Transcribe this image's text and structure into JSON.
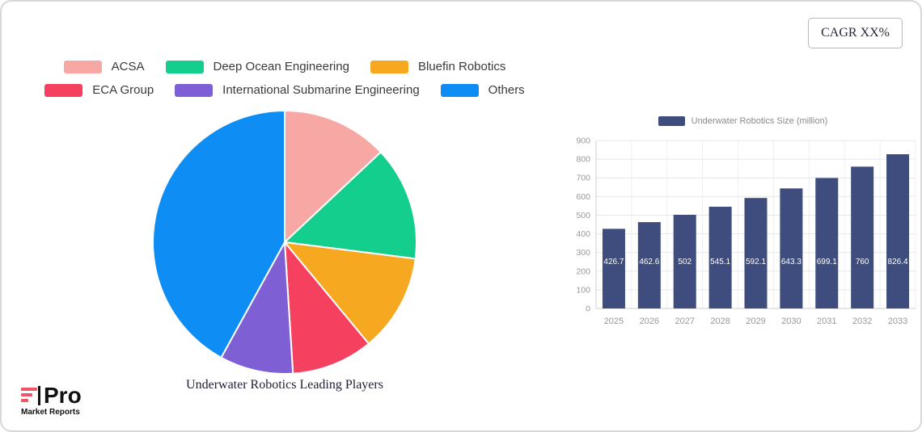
{
  "cagr_label": "CAGR XX%",
  "logo": {
    "name": "Pro",
    "tagline": "Market Reports"
  },
  "chart_data": [
    {
      "type": "pie",
      "title": "Underwater Robotics Leading Players",
      "labels": [
        "ACSA",
        "Deep Ocean Engineering",
        "Bluefin Robotics",
        "ECA Group",
        "International Submarine Engineering",
        "Others"
      ],
      "values": [
        13,
        14,
        12,
        10,
        9,
        42
      ],
      "colors": [
        "#f7a8a4",
        "#13ce8d",
        "#f6a820",
        "#f5415f",
        "#7e5fd4",
        "#0e8ef5"
      ],
      "legend_rows": [
        [
          0,
          1,
          2
        ],
        [
          3,
          4,
          5
        ]
      ],
      "legend_position": "top"
    },
    {
      "type": "bar",
      "legend": "Underwater Robotics Size (million)",
      "categories": [
        "2025",
        "2026",
        "2027",
        "2028",
        "2029",
        "2030",
        "2031",
        "2032",
        "2033"
      ],
      "values": [
        426.7,
        462.6,
        502,
        545.1,
        592.1,
        643.3,
        699.1,
        760,
        826.4
      ],
      "value_labels": [
        "426.7",
        "462.6",
        "502",
        "545.1",
        "592.1",
        "643.3",
        "699.1",
        "760",
        "826.4"
      ],
      "ylim": [
        0,
        900
      ],
      "ytick_step": 100,
      "grid": true,
      "bar_color": "#3e4d7d",
      "axis_text_color": "#999999",
      "value_label_color": "#ffffff"
    }
  ]
}
